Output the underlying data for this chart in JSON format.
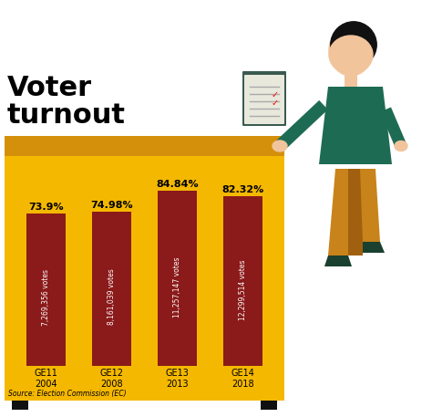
{
  "title_line1": "Voter",
  "title_line2": "turnout",
  "categories": [
    "GE11\n2004",
    "GE12\n2008",
    "GE13\n2013",
    "GE14\n2018"
  ],
  "percentages": [
    73.9,
    74.98,
    84.84,
    82.32
  ],
  "pct_labels": [
    "73.9%",
    "74.98%",
    "84.84%",
    "82.32%"
  ],
  "vote_labels": [
    "7,269,356 votes",
    "8,161,039 votes",
    "11,257,147 votes",
    "12,299,514 votes"
  ],
  "bar_color": "#8B1A1A",
  "bg_color": "#F5B800",
  "top_strip_color": "#D4900A",
  "source_text": "Source: Election Commission (EC)",
  "fig_bg": "#FFFFFF",
  "skin_color": "#F2C49B",
  "shirt_color": "#1E6B54",
  "pants_color": "#C8831A",
  "shoe_color": "#1A4030",
  "hair_color": "#111111"
}
